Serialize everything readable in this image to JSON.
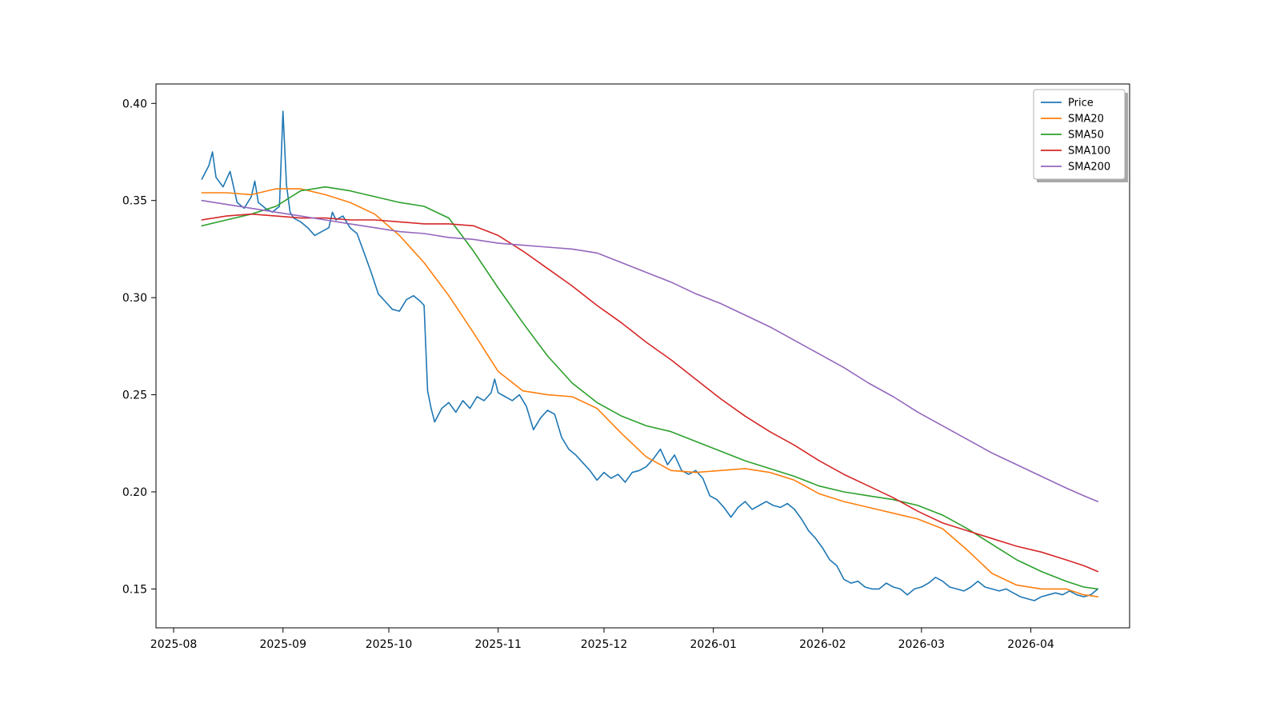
{
  "figure": {
    "background": "#ffffff",
    "title": ""
  },
  "chart_data": {
    "type": "line",
    "title": "",
    "xlabel": "",
    "ylabel": "",
    "grid": false,
    "x_unit": "days since 2025-08-01",
    "xlim": [
      -5,
      271
    ],
    "ylim": [
      0.13,
      0.41
    ],
    "x_ticks": [
      {
        "pos": 0,
        "label": "2025-08"
      },
      {
        "pos": 31,
        "label": "2025-09"
      },
      {
        "pos": 61,
        "label": "2025-10"
      },
      {
        "pos": 92,
        "label": "2025-11"
      },
      {
        "pos": 122,
        "label": "2025-12"
      },
      {
        "pos": 153,
        "label": "2026-01"
      },
      {
        "pos": 184,
        "label": "2026-02"
      },
      {
        "pos": 212,
        "label": "2026-03"
      },
      {
        "pos": 243,
        "label": "2026-04"
      }
    ],
    "y_ticks": [
      {
        "pos": 0.15,
        "label": "0.15"
      },
      {
        "pos": 0.2,
        "label": "0.20"
      },
      {
        "pos": 0.25,
        "label": "0.25"
      },
      {
        "pos": 0.3,
        "label": "0.30"
      },
      {
        "pos": 0.35,
        "label": "0.35"
      },
      {
        "pos": 0.4,
        "label": "0.40"
      }
    ],
    "legend": {
      "position": "upper right",
      "shadow": true,
      "entries": [
        "Price",
        "SMA20",
        "SMA50",
        "SMA100",
        "SMA200"
      ]
    },
    "series": [
      {
        "name": "Price",
        "color": "#1f77b4",
        "x": [
          8,
          10,
          11,
          12,
          14,
          16,
          18,
          20,
          22,
          23,
          24,
          26,
          28,
          30,
          31,
          32,
          33,
          34,
          36,
          38,
          40,
          42,
          44,
          45,
          46,
          48,
          50,
          52,
          54,
          56,
          58,
          60,
          62,
          64,
          66,
          68,
          70,
          71,
          72,
          73,
          74,
          76,
          78,
          80,
          82,
          84,
          86,
          88,
          90,
          91,
          92,
          94,
          96,
          98,
          100,
          102,
          104,
          106,
          108,
          110,
          112,
          114,
          116,
          118,
          120,
          122,
          124,
          126,
          128,
          130,
          132,
          134,
          136,
          138,
          140,
          142,
          144,
          146,
          148,
          150,
          152,
          154,
          156,
          158,
          160,
          162,
          164,
          166,
          168,
          170,
          172,
          174,
          176,
          178,
          180,
          182,
          184,
          186,
          188,
          190,
          192,
          194,
          196,
          198,
          200,
          202,
          204,
          206,
          208,
          210,
          212,
          214,
          216,
          218,
          220,
          222,
          224,
          226,
          228,
          230,
          232,
          234,
          236,
          238,
          240,
          242,
          244,
          246,
          248,
          250,
          252,
          254,
          256,
          258,
          260,
          262
        ],
        "y": [
          0.361,
          0.368,
          0.375,
          0.362,
          0.357,
          0.365,
          0.349,
          0.346,
          0.352,
          0.36,
          0.349,
          0.346,
          0.344,
          0.347,
          0.396,
          0.358,
          0.344,
          0.341,
          0.339,
          0.336,
          0.332,
          0.334,
          0.336,
          0.344,
          0.34,
          0.342,
          0.336,
          0.333,
          0.323,
          0.313,
          0.302,
          0.298,
          0.294,
          0.293,
          0.299,
          0.301,
          0.298,
          0.296,
          0.252,
          0.243,
          0.236,
          0.243,
          0.246,
          0.241,
          0.247,
          0.243,
          0.249,
          0.247,
          0.251,
          0.258,
          0.251,
          0.249,
          0.247,
          0.25,
          0.244,
          0.232,
          0.238,
          0.242,
          0.24,
          0.228,
          0.222,
          0.219,
          0.215,
          0.211,
          0.206,
          0.21,
          0.207,
          0.209,
          0.205,
          0.21,
          0.211,
          0.213,
          0.217,
          0.222,
          0.214,
          0.219,
          0.211,
          0.209,
          0.211,
          0.207,
          0.198,
          0.196,
          0.192,
          0.187,
          0.192,
          0.195,
          0.191,
          0.193,
          0.195,
          0.193,
          0.192,
          0.194,
          0.191,
          0.186,
          0.18,
          0.176,
          0.171,
          0.165,
          0.162,
          0.155,
          0.153,
          0.154,
          0.151,
          0.15,
          0.15,
          0.153,
          0.151,
          0.15,
          0.147,
          0.15,
          0.151,
          0.153,
          0.156,
          0.154,
          0.151,
          0.15,
          0.149,
          0.151,
          0.154,
          0.151,
          0.15,
          0.149,
          0.15,
          0.148,
          0.146,
          0.145,
          0.144,
          0.146,
          0.147,
          0.148,
          0.147,
          0.149,
          0.147,
          0.146,
          0.147,
          0.15
        ]
      },
      {
        "name": "SMA20",
        "color": "#ff7f0e",
        "x": [
          8,
          15,
          22,
          29,
          36,
          43,
          50,
          57,
          64,
          71,
          78,
          85,
          92,
          99,
          106,
          113,
          120,
          127,
          134,
          141,
          148,
          155,
          162,
          169,
          176,
          183,
          190,
          197,
          204,
          211,
          218,
          225,
          232,
          239,
          246,
          253,
          258,
          262
        ],
        "y": [
          0.354,
          0.354,
          0.353,
          0.356,
          0.356,
          0.353,
          0.349,
          0.343,
          0.332,
          0.318,
          0.301,
          0.282,
          0.262,
          0.252,
          0.25,
          0.249,
          0.243,
          0.23,
          0.218,
          0.211,
          0.21,
          0.211,
          0.212,
          0.21,
          0.206,
          0.199,
          0.195,
          0.192,
          0.189,
          0.186,
          0.181,
          0.17,
          0.158,
          0.152,
          0.15,
          0.15,
          0.147,
          0.146
        ]
      },
      {
        "name": "SMA50",
        "color": "#2ca02c",
        "x": [
          8,
          15,
          22,
          29,
          36,
          43,
          50,
          57,
          64,
          71,
          78,
          85,
          92,
          99,
          106,
          113,
          120,
          127,
          134,
          141,
          148,
          155,
          162,
          169,
          176,
          183,
          190,
          197,
          204,
          211,
          218,
          225,
          232,
          239,
          246,
          253,
          258,
          262
        ],
        "y": [
          0.337,
          0.34,
          0.343,
          0.347,
          0.355,
          0.357,
          0.355,
          0.352,
          0.349,
          0.347,
          0.341,
          0.324,
          0.305,
          0.287,
          0.27,
          0.256,
          0.246,
          0.239,
          0.234,
          0.231,
          0.226,
          0.221,
          0.216,
          0.212,
          0.208,
          0.203,
          0.2,
          0.198,
          0.196,
          0.193,
          0.188,
          0.181,
          0.173,
          0.165,
          0.159,
          0.154,
          0.151,
          0.15
        ]
      },
      {
        "name": "SMA100",
        "color": "#d62728",
        "x": [
          8,
          15,
          22,
          29,
          36,
          43,
          50,
          57,
          64,
          71,
          78,
          85,
          92,
          99,
          106,
          113,
          120,
          127,
          134,
          141,
          148,
          155,
          162,
          169,
          176,
          183,
          190,
          197,
          204,
          211,
          218,
          225,
          232,
          239,
          246,
          253,
          258,
          262
        ],
        "y": [
          0.34,
          0.342,
          0.343,
          0.342,
          0.341,
          0.341,
          0.34,
          0.34,
          0.339,
          0.338,
          0.338,
          0.337,
          0.332,
          0.324,
          0.315,
          0.306,
          0.296,
          0.287,
          0.277,
          0.268,
          0.258,
          0.248,
          0.239,
          0.231,
          0.224,
          0.216,
          0.209,
          0.203,
          0.197,
          0.19,
          0.184,
          0.18,
          0.176,
          0.172,
          0.169,
          0.165,
          0.162,
          0.159
        ]
      },
      {
        "name": "SMA200",
        "color": "#9467bd",
        "x": [
          8,
          15,
          22,
          29,
          36,
          43,
          50,
          57,
          64,
          71,
          78,
          85,
          92,
          99,
          106,
          113,
          120,
          127,
          134,
          141,
          148,
          155,
          162,
          169,
          176,
          183,
          190,
          197,
          204,
          211,
          218,
          225,
          232,
          239,
          246,
          253,
          258,
          262
        ],
        "y": [
          0.35,
          0.348,
          0.346,
          0.344,
          0.342,
          0.34,
          0.338,
          0.336,
          0.334,
          0.333,
          0.331,
          0.33,
          0.328,
          0.327,
          0.326,
          0.325,
          0.323,
          0.318,
          0.313,
          0.308,
          0.302,
          0.297,
          0.291,
          0.285,
          0.278,
          0.271,
          0.264,
          0.256,
          0.249,
          0.241,
          0.234,
          0.227,
          0.22,
          0.214,
          0.208,
          0.202,
          0.198,
          0.195
        ]
      }
    ]
  }
}
